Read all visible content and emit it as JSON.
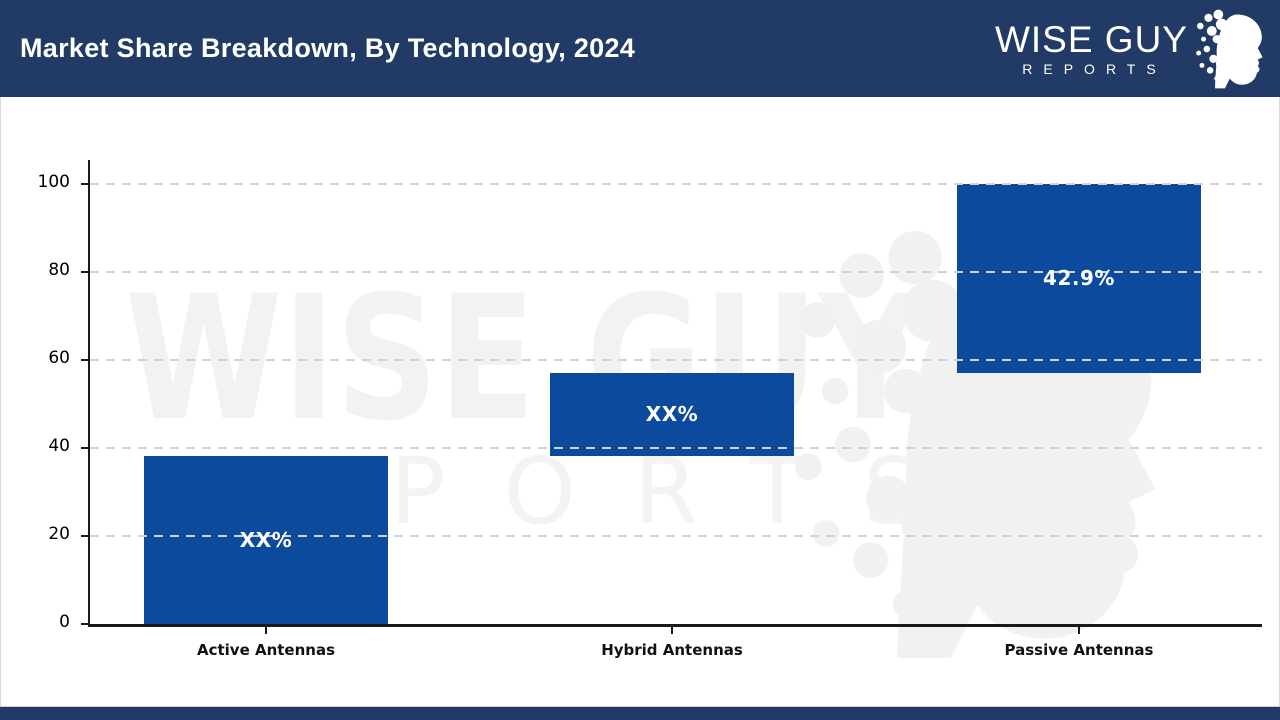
{
  "header": {
    "title": "Market Share Breakdown, By Technology, 2024",
    "logo_line1": "WISE GUY",
    "logo_line2": "REPORTS"
  },
  "watermark": {
    "line1": "WISE GUY",
    "line2": "REPORTS"
  },
  "chart_data": {
    "type": "bar",
    "variant": "waterfall",
    "title": "Market Share Breakdown, By Technology, 2024",
    "categories": [
      "Active Antennas",
      "Hybrid Antennas",
      "Passive Antennas"
    ],
    "segments": [
      {
        "category": "Active Antennas",
        "start": 0,
        "end": 38.2,
        "label": "XX%"
      },
      {
        "category": "Hybrid Antennas",
        "start": 38.2,
        "end": 57.1,
        "label": "XX%"
      },
      {
        "category": "Passive Antennas",
        "start": 57.1,
        "end": 100,
        "label": "42.9%"
      }
    ],
    "ylim": [
      0,
      100
    ],
    "yticks": [
      0,
      20,
      40,
      60,
      80,
      100
    ],
    "xlabel": "",
    "ylabel": "",
    "legend": "none",
    "grid": "horizontal-dashed",
    "colors": {
      "bar": "#0b4a9d",
      "header_bg": "#213a66",
      "grid_line": "#d2d2d2",
      "axis": "#1a1a1a",
      "bar_label_text": "#ffffff",
      "watermark": "#f2f2f3"
    }
  }
}
